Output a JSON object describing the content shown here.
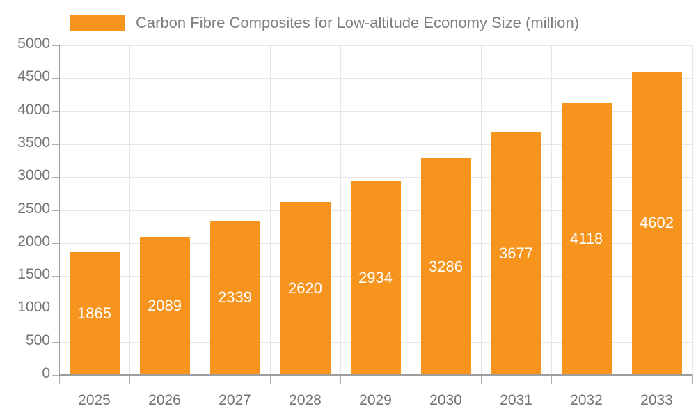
{
  "chart_data": {
    "type": "bar",
    "title": "Carbon Fibre Composites for Low-altitude Economy Size (million)",
    "categories": [
      "2025",
      "2026",
      "2027",
      "2028",
      "2029",
      "2030",
      "2031",
      "2032",
      "2033"
    ],
    "series": [
      {
        "name": "Carbon Fibre Composites for Low-altitude Economy Size (million)",
        "values": [
          1865,
          2089,
          2339,
          2620,
          2934,
          3286,
          3677,
          4118,
          4602
        ]
      }
    ],
    "xlabel": "",
    "ylabel": "",
    "ylim": [
      0,
      5000
    ],
    "y_ticks": [
      0,
      500,
      1000,
      1500,
      2000,
      2500,
      3000,
      3500,
      4000,
      4500,
      5000
    ],
    "grid": true,
    "legend_position": "top-left",
    "value_labels_inside_bars": true,
    "colors": {
      "bar": "#f7941e",
      "value_label": "#ffffff",
      "axis_label": "#737373",
      "title": "#7f7f7f",
      "gridline": "#e6e6e6",
      "tick": "#b0b0b0",
      "axis_line": "#9e9e9e",
      "background": "#ffffff"
    }
  }
}
